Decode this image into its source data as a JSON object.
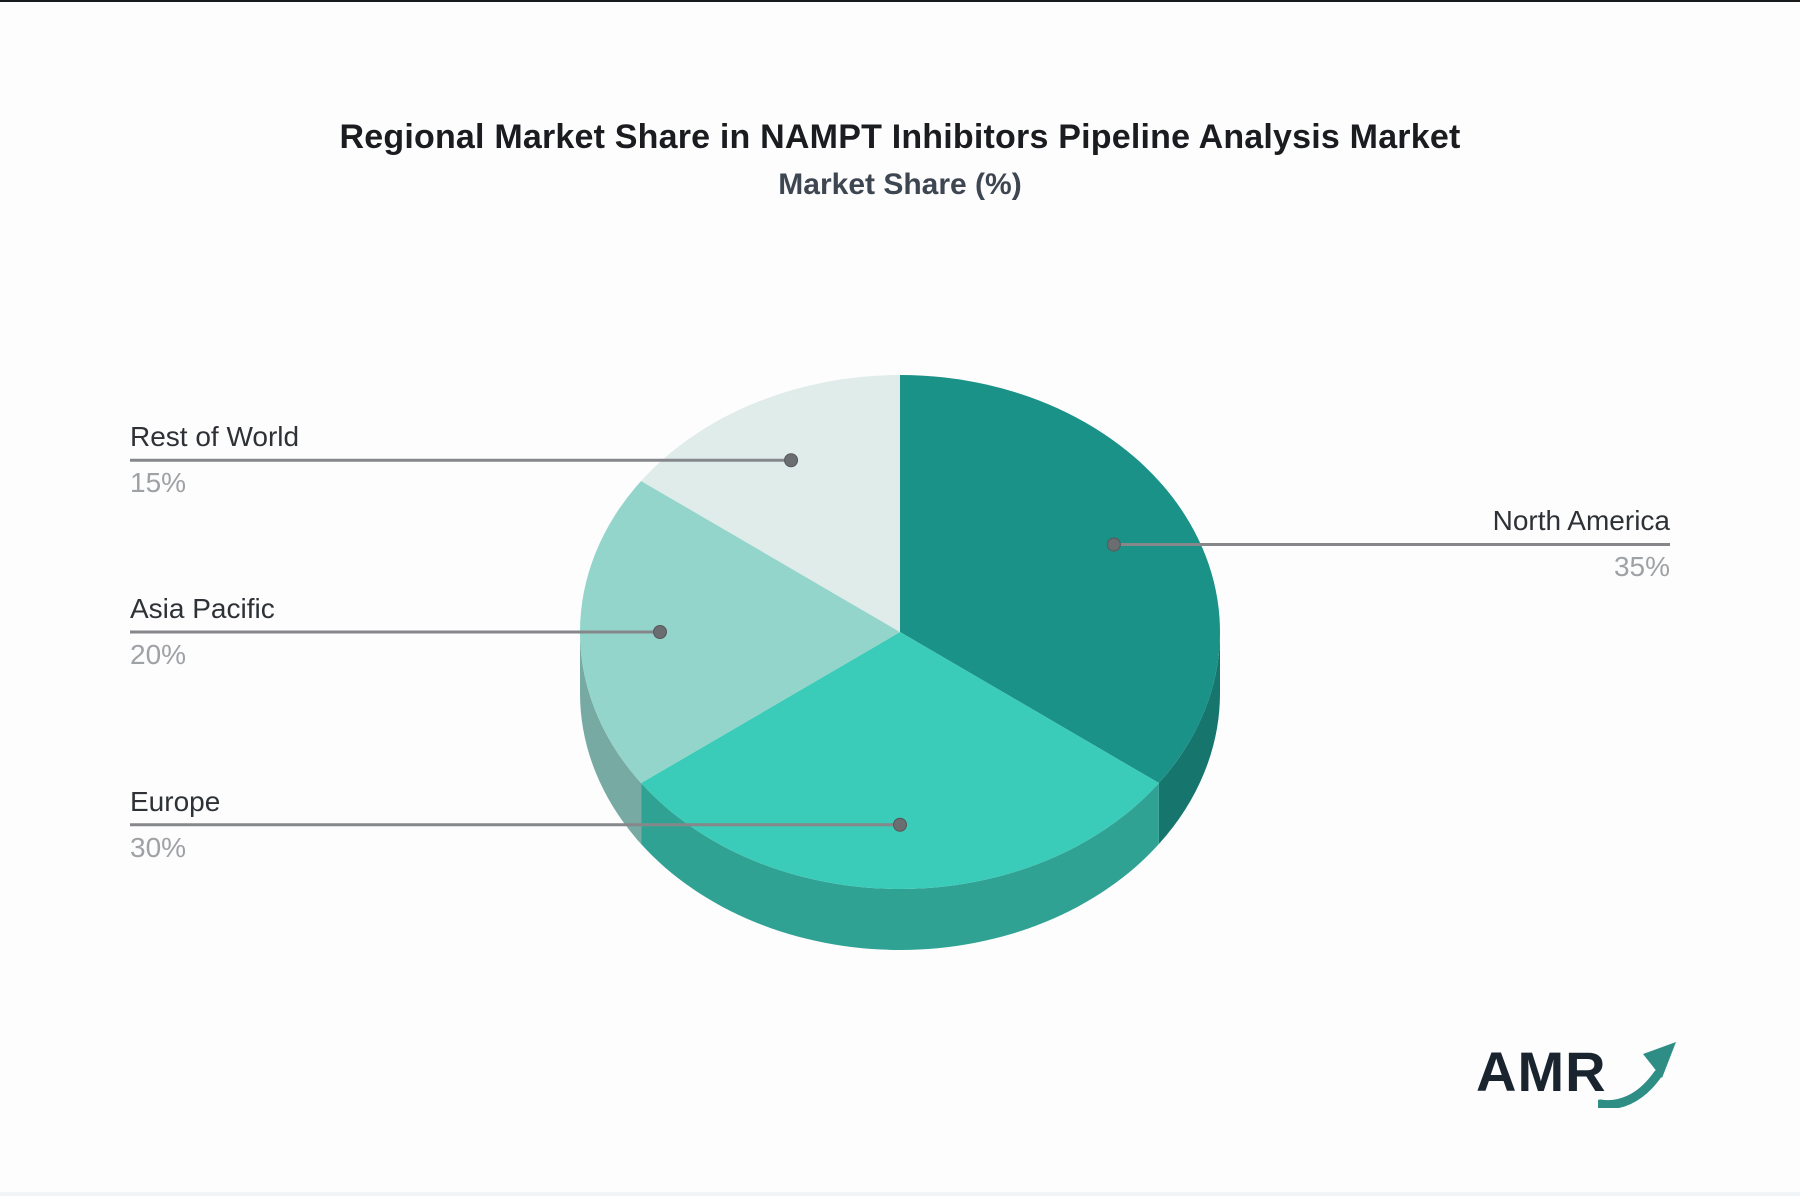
{
  "chart_data": {
    "type": "pie",
    "effect": "3d",
    "title": "Regional Market Share in NAMPT Inhibitors Pipeline Analysis Market",
    "subtitle": "Market Share (%)",
    "legend_position": "callout-labels",
    "direction": "clockwise",
    "start_angle_deg": 0,
    "slices": [
      {
        "label": "North America",
        "value": 35,
        "pct": "35%",
        "color": "#1b9287",
        "callout_side": "right"
      },
      {
        "label": "Europe",
        "value": 30,
        "pct": "30%",
        "color": "#3bcbb9",
        "callout_side": "left"
      },
      {
        "label": "Asia Pacific",
        "value": 20,
        "pct": "20%",
        "color": "#93d5cb",
        "callout_side": "left"
      },
      {
        "label": "Rest of World",
        "value": 15,
        "pct": "15%",
        "color": "#dfece9",
        "callout_side": "left"
      }
    ]
  },
  "branding": {
    "logo_text": "AMR",
    "logo_color": "#19242f",
    "arrow_color": "#2e8e86"
  },
  "colors": {
    "title": "#1a1c20",
    "subtitle": "#3e4651",
    "label_text": "#2e3236",
    "value_text": "#9fa2a5",
    "leader_line": "#85878a",
    "leader_dot": "#6b6e71"
  }
}
